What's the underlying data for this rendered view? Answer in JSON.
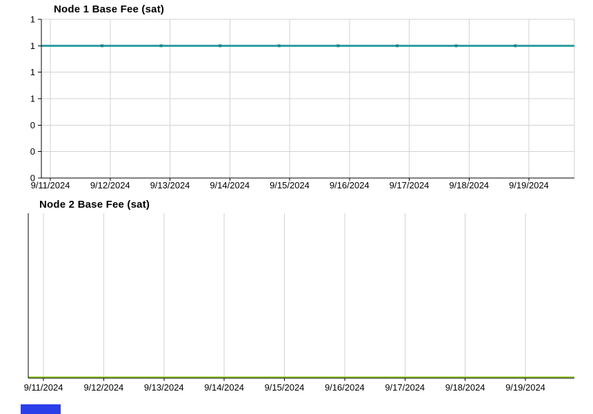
{
  "charts": [
    {
      "title": "Node 1 Base Fee (sat)",
      "y_tick_labels": [
        "1",
        "1",
        "1",
        "1",
        "0",
        "0",
        "0"
      ],
      "x_tick_labels": [
        "9/11/2024",
        "9/12/2024",
        "9/13/2024",
        "9/14/2024",
        "9/15/2024",
        "9/16/2024",
        "9/17/2024",
        "9/18/2024",
        "9/19/2024"
      ],
      "line_color": "#2A9D9F",
      "marker_color": "#17888C",
      "grid_color": "#D2D2D2",
      "axis_color": "#000000",
      "text_color": "#000000"
    },
    {
      "title": "Node 2 Base Fee (sat)",
      "y_tick_labels": [],
      "x_tick_labels": [
        "9/11/2024",
        "9/12/2024",
        "9/13/2024",
        "9/14/2024",
        "9/15/2024",
        "9/16/2024",
        "9/17/2024",
        "9/18/2024",
        "9/19/2024"
      ],
      "line_color": "#9ACD32",
      "grid_color": "#D2D2D2",
      "axis_color": "#000000",
      "text_color": "#000000"
    }
  ],
  "scrollbar": {
    "thumb_color": "#2B3FE8"
  },
  "chart_data": [
    {
      "type": "line",
      "title": "Node 1 Base Fee (sat)",
      "xlabel": "",
      "ylabel": "",
      "x": [
        "9/11/2024",
        "9/12/2024",
        "9/13/2024",
        "9/14/2024",
        "9/15/2024",
        "9/16/2024",
        "9/17/2024",
        "9/18/2024",
        "9/19/2024"
      ],
      "series": [
        {
          "name": "Node 1 Base Fee (sat)",
          "values": [
            1,
            1,
            1,
            1,
            1,
            1,
            1,
            1,
            1
          ]
        }
      ],
      "ylim": [
        0,
        1.2
      ],
      "y_ticks": [
        1.2,
        1.0,
        0.8,
        0.6,
        0.4,
        0.2,
        0
      ],
      "y_tick_labels_shown": [
        "1",
        "1",
        "1",
        "1",
        "0",
        "0",
        "0"
      ],
      "grid": true,
      "legend_position": "none",
      "line_color": "#2A9D9F"
    },
    {
      "type": "line",
      "title": "Node 2 Base Fee (sat)",
      "xlabel": "",
      "ylabel": "",
      "x": [
        "9/11/2024",
        "9/12/2024",
        "9/13/2024",
        "9/14/2024",
        "9/15/2024",
        "9/16/2024",
        "9/17/2024",
        "9/18/2024",
        "9/19/2024"
      ],
      "series": [
        {
          "name": "Node 2 Base Fee (sat)",
          "values": [
            0,
            0,
            0,
            0,
            0,
            0,
            0,
            0,
            0
          ]
        }
      ],
      "ylim": [
        0,
        1
      ],
      "y_ticks": [],
      "y_tick_labels_shown": [],
      "grid": "vertical-only",
      "legend_position": "none",
      "line_color": "#9ACD32"
    }
  ]
}
